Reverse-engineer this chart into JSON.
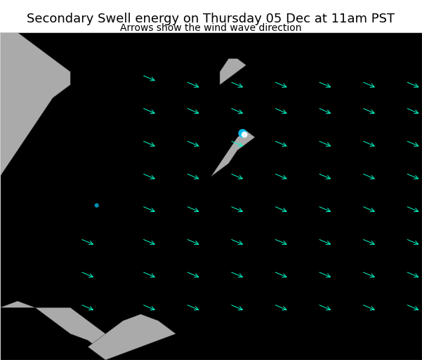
{
  "title": "Secondary Swell energy on Thursday 05 Dec at 11am PST",
  "subtitle": "Arrows show the wind wave direction",
  "title_fontsize": 13,
  "subtitle_fontsize": 10,
  "background_color": "#ffffff",
  "map_bg_color": "#000000",
  "land_color": "#aaaaaa",
  "land_edge_color": "#333333",
  "border_color": "#cccccc",
  "arrow_color": "#00ffcc",
  "hotspot_color_1": "#0044ff",
  "hotspot_color_2": "#00ffff",
  "fig_width": 6.01,
  "fig_height": 5.13,
  "lon_min": 108,
  "lon_max": 132,
  "lat_min": 1,
  "lat_max": 26,
  "arrows": [
    [
      116.5,
      22.5,
      -30
    ],
    [
      119,
      22,
      -30
    ],
    [
      121.5,
      22,
      -30
    ],
    [
      124,
      22,
      -30
    ],
    [
      126.5,
      22,
      -30
    ],
    [
      129,
      22,
      -30
    ],
    [
      131.5,
      22,
      -30
    ],
    [
      116.5,
      20,
      -30
    ],
    [
      119,
      20,
      -30
    ],
    [
      121.5,
      20,
      -30
    ],
    [
      124,
      20,
      -30
    ],
    [
      126.5,
      20,
      -30
    ],
    [
      129,
      20,
      -30
    ],
    [
      131.5,
      20,
      -30
    ],
    [
      116.5,
      17.5,
      -30
    ],
    [
      119,
      17.5,
      -30
    ],
    [
      121.5,
      17.5,
      -30
    ],
    [
      124,
      17.5,
      -30
    ],
    [
      126.5,
      17.5,
      -30
    ],
    [
      129,
      17.5,
      -30
    ],
    [
      131.5,
      17.5,
      -30
    ],
    [
      116.5,
      15,
      -30
    ],
    [
      119,
      15,
      -30
    ],
    [
      121.5,
      15,
      -30
    ],
    [
      124,
      15,
      -30
    ],
    [
      126.5,
      15,
      -30
    ],
    [
      129,
      15,
      -30
    ],
    [
      131.5,
      15,
      -30
    ],
    [
      116.5,
      12.5,
      -30
    ],
    [
      119,
      12.5,
      -30
    ],
    [
      121.5,
      12.5,
      -30
    ],
    [
      124,
      12.5,
      -30
    ],
    [
      126.5,
      12.5,
      -30
    ],
    [
      129,
      12.5,
      -30
    ],
    [
      131.5,
      12.5,
      -30
    ],
    [
      116.5,
      10,
      -30
    ],
    [
      119,
      10,
      -30
    ],
    [
      121.5,
      10,
      -30
    ],
    [
      124,
      10,
      -30
    ],
    [
      126.5,
      10,
      -30
    ],
    [
      129,
      10,
      -30
    ],
    [
      131.5,
      10,
      -30
    ],
    [
      116.5,
      7.5,
      -30
    ],
    [
      119,
      7.5,
      -30
    ],
    [
      121.5,
      7.5,
      -30
    ],
    [
      124,
      7.5,
      -30
    ],
    [
      126.5,
      7.5,
      -30
    ],
    [
      129,
      7.5,
      -30
    ],
    [
      131.5,
      7.5,
      -30
    ],
    [
      116.5,
      5,
      -30
    ],
    [
      119,
      5,
      -30
    ],
    [
      121.5,
      5,
      -30
    ],
    [
      124,
      5,
      -30
    ],
    [
      126.5,
      5,
      -30
    ],
    [
      129,
      5,
      -30
    ],
    [
      131.5,
      5,
      -30
    ],
    [
      113,
      7.5,
      -30
    ],
    [
      113,
      5,
      -30
    ],
    [
      113,
      10,
      -30
    ]
  ],
  "hotspots": [
    {
      "lon": 121.8,
      "lat": 18.3,
      "size": 80,
      "color": "#00ccff",
      "alpha": 0.9
    },
    {
      "lon": 121.9,
      "lat": 18.2,
      "size": 40,
      "color": "#ffffff",
      "alpha": 0.95
    },
    {
      "lon": 113.5,
      "lat": 12.8,
      "size": 20,
      "color": "#00ccff",
      "alpha": 0.7
    }
  ]
}
